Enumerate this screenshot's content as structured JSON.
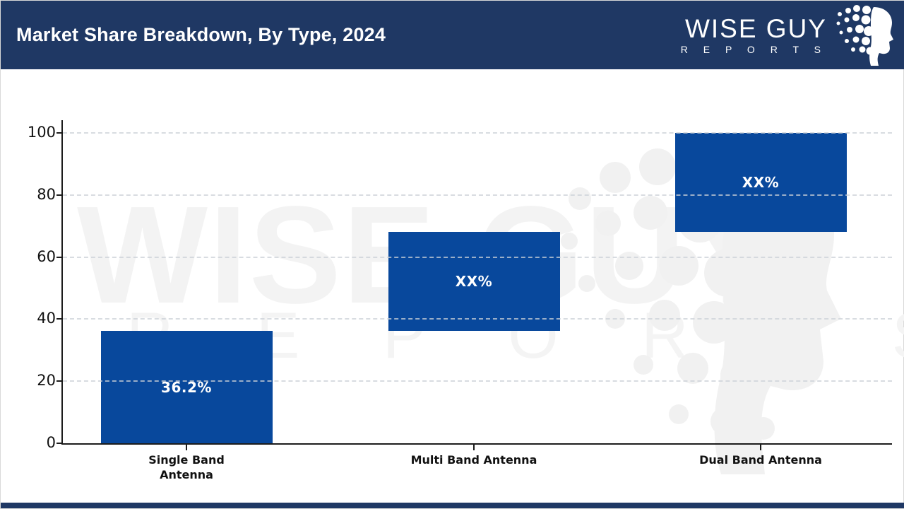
{
  "header": {
    "title": "Market Share Breakdown, By Type, 2024",
    "logo_line1": "WISE GUY",
    "logo_line2": "R E P O R T S"
  },
  "watermark": {
    "line1": "WISE GUY",
    "line2": "R E P O R T S"
  },
  "chart_data": {
    "type": "bar",
    "subtype": "waterfall",
    "title": "Market Share Breakdown, By Type, 2024",
    "categories": [
      "Single Band Antenna",
      "Multi Band Antenna",
      "Dual Band Antenna"
    ],
    "category_lines": [
      [
        "Single Band",
        "Antenna"
      ],
      [
        "Multi Band Antenna"
      ],
      [
        "Dual Band Antenna"
      ]
    ],
    "segments": [
      {
        "category": "Single Band Antenna",
        "start": 0,
        "end": 36.2,
        "label": "36.2%"
      },
      {
        "category": "Multi Band Antenna",
        "start": 36.2,
        "end": 68,
        "label": "XX%"
      },
      {
        "category": "Dual Band Antenna",
        "start": 68,
        "end": 100,
        "label": "XX%"
      }
    ],
    "yticks": [
      0,
      20,
      40,
      60,
      80,
      100
    ],
    "ylim": [
      0,
      105
    ],
    "xlabel": "",
    "ylabel": "",
    "grid": "horizontal-dashed",
    "legend": "none",
    "bar_color": "#08489C",
    "bar_label_color": "#FFFFFF",
    "axis_color": "#1c1c1c",
    "header_color": "#1F3864",
    "gridline_color": "#CBD0D7"
  }
}
